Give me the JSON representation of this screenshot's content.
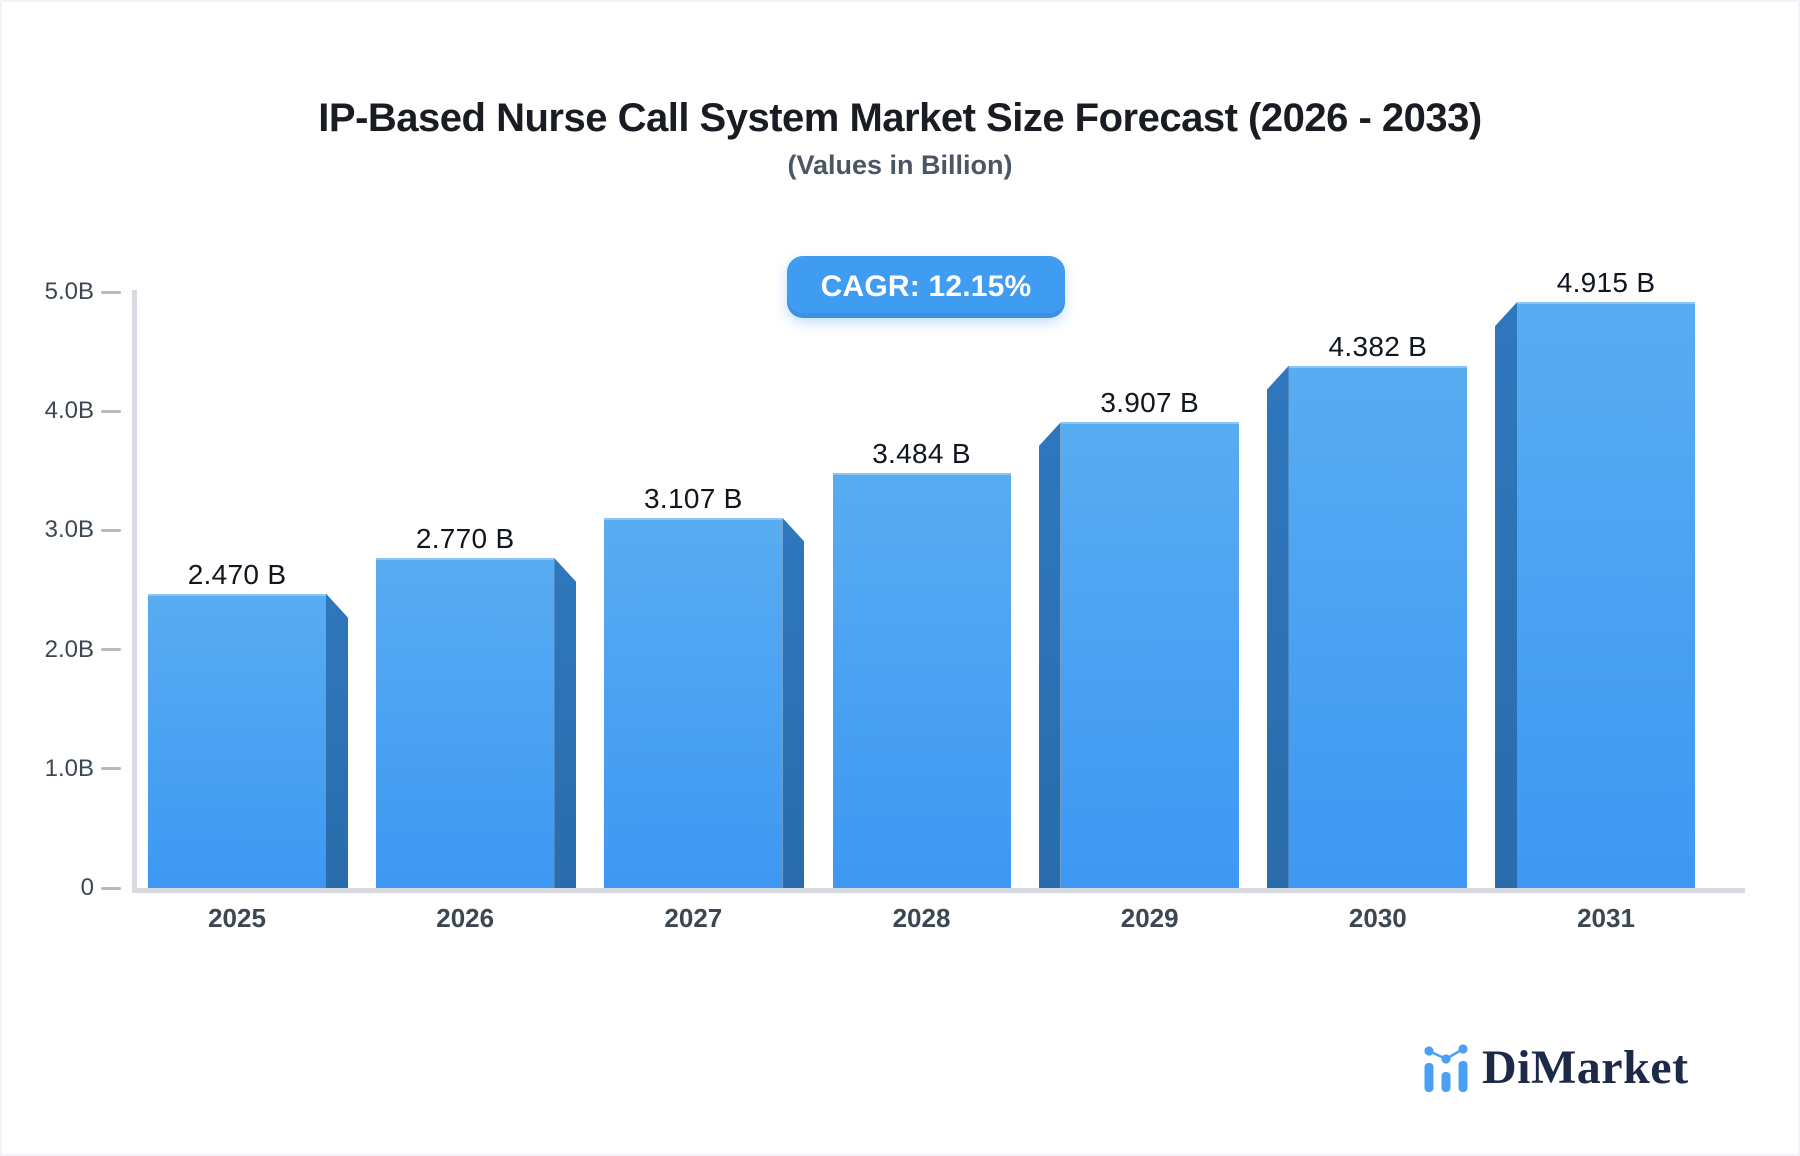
{
  "chart_data": {
    "type": "bar",
    "title": "IP-Based Nurse Call System Market Size Forecast (2026 - 2033)",
    "subtitle": "(Values in Billion)",
    "badge": "CAGR: 12.15%",
    "categories": [
      "2025",
      "2026",
      "2027",
      "2028",
      "2029",
      "2030",
      "2031"
    ],
    "values": [
      2.47,
      2.77,
      3.107,
      3.484,
      3.907,
      4.382,
      4.915
    ],
    "value_labels": [
      "2.470 B",
      "2.770 B",
      "3.107 B",
      "3.484 B",
      "3.907 B",
      "4.382 B",
      "4.915 B"
    ],
    "y_ticks": [
      {
        "label": "5.0B",
        "value": 5
      },
      {
        "label": "4.0B",
        "value": 4
      },
      {
        "label": "3.0B",
        "value": 3
      },
      {
        "label": "2.0B",
        "value": 2
      },
      {
        "label": "1.0B",
        "value": 1
      },
      {
        "label": "0",
        "value": 0
      }
    ],
    "ylim": [
      0,
      5
    ],
    "xlabel": "",
    "ylabel": "",
    "grid": false,
    "legend": false,
    "colors": {
      "bar_front_top": "#58acf1",
      "bar_front_bottom": "#3e98f3",
      "bar_side_top": "#2f77bd",
      "bar_side_bottom": "#2a6cab",
      "badge_bg": "#3f9cf1",
      "axis_line": "#d7dbe1",
      "logo_blue": "#4aa0f5",
      "logo_navy": "#1c2a47"
    }
  },
  "branding": {
    "logo_text": "DiMarket",
    "logo_icon": "bar-chart-dots-icon"
  }
}
